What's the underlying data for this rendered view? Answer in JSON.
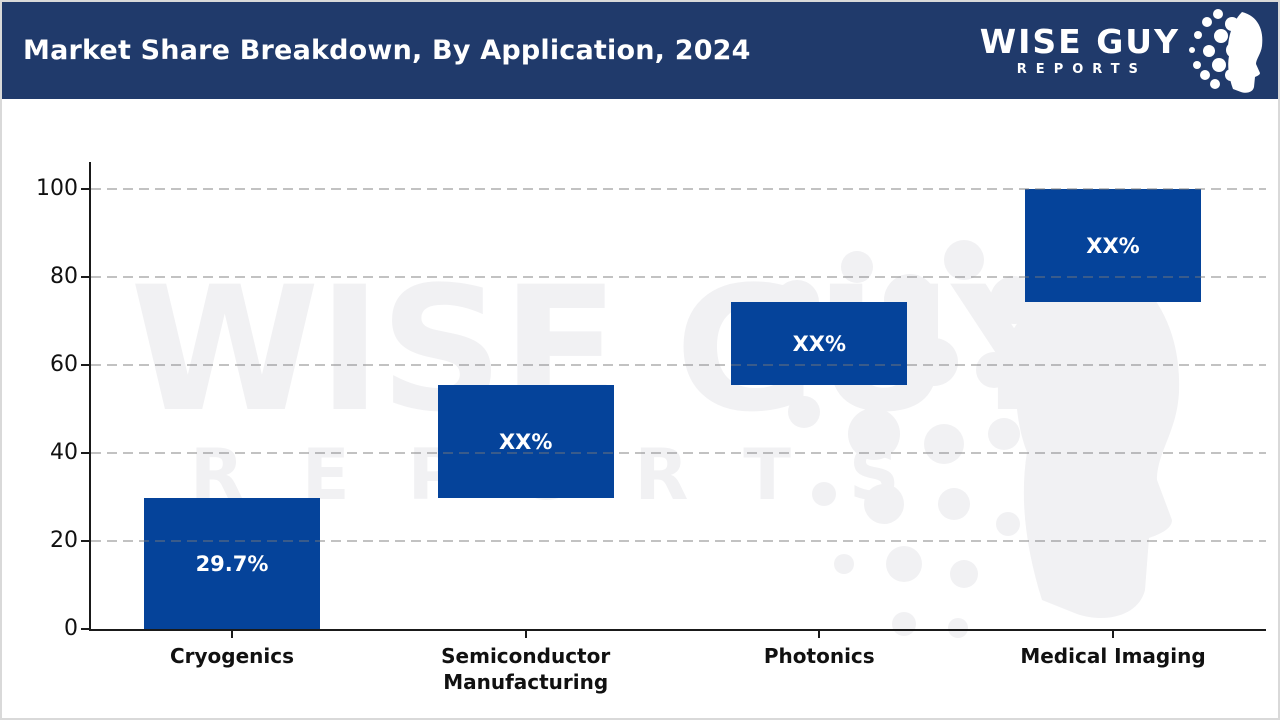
{
  "header": {
    "title": "Market Share Breakdown, By Application, 2024",
    "logo": {
      "primary": "WISE GUY",
      "secondary": "REPORTS"
    }
  },
  "watermark": {
    "primary": "WISE GUY",
    "secondary": "REPORTS"
  },
  "chart_data": {
    "type": "bar",
    "subtype": "waterfall",
    "title": "Market Share Breakdown, By Application, 2024",
    "categories": [
      "Cryogenics",
      "Semiconductor Manufacturing",
      "Photonics",
      "Medical Imaging"
    ],
    "xtick_lines": [
      [
        "Cryogenics"
      ],
      [
        "Semiconductor",
        "Manufacturing"
      ],
      [
        "Photonics"
      ],
      [
        "Medical Imaging"
      ]
    ],
    "segments": [
      {
        "category": "Cryogenics",
        "start": 0,
        "end": 29.7,
        "label": "29.7%"
      },
      {
        "category": "Semiconductor Manufacturing",
        "start": 29.7,
        "end": 55.4,
        "label": "XX%"
      },
      {
        "category": "Photonics",
        "start": 55.4,
        "end": 74.3,
        "label": "XX%"
      },
      {
        "category": "Medical Imaging",
        "start": 74.3,
        "end": 100,
        "label": "XX%"
      }
    ],
    "ylim": [
      0,
      100
    ],
    "yticks": [
      0,
      20,
      40,
      60,
      80,
      100
    ],
    "grid": "horizontal-dashed-over-bars",
    "legend": false,
    "bar_color": "#05439a",
    "bar_label_color": "#ffffff",
    "axis_color": "#1a1a1a"
  },
  "colors": {
    "header_bg": "#203a6b",
    "canvas_bg": "#ffffff",
    "grid": "rgba(120,120,120,0.45)",
    "watermark": "#f1f1f3",
    "frame": "#d9d9d9"
  }
}
